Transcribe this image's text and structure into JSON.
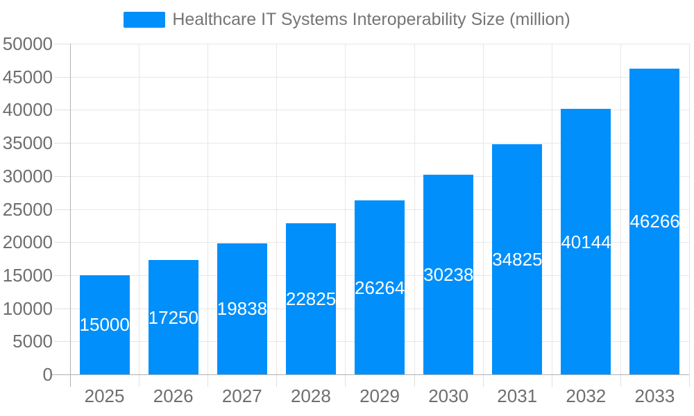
{
  "chart_data": {
    "type": "bar",
    "title": "Healthcare IT Systems Interoperability Size (million)",
    "categories": [
      "2025",
      "2026",
      "2027",
      "2028",
      "2029",
      "2030",
      "2031",
      "2032",
      "2033"
    ],
    "series": [
      {
        "name": "Healthcare IT Systems Interoperability Size (million)",
        "values": [
          15000,
          17250,
          19838,
          22825,
          26264,
          30238,
          34825,
          40144,
          46266
        ]
      }
    ],
    "xlabel": "",
    "ylabel": "",
    "ylim": [
      0,
      50000
    ],
    "ytick_step": 5000,
    "grid": true,
    "legend_position": "top",
    "bar_color": "#008FFB",
    "data_label_color": "#ffffff",
    "axis_label_color": "#6e6e6e",
    "legend_text_color": "#757575",
    "gridline_color": "#e7e7e7",
    "axis_line_color": "#b0b0b0"
  }
}
